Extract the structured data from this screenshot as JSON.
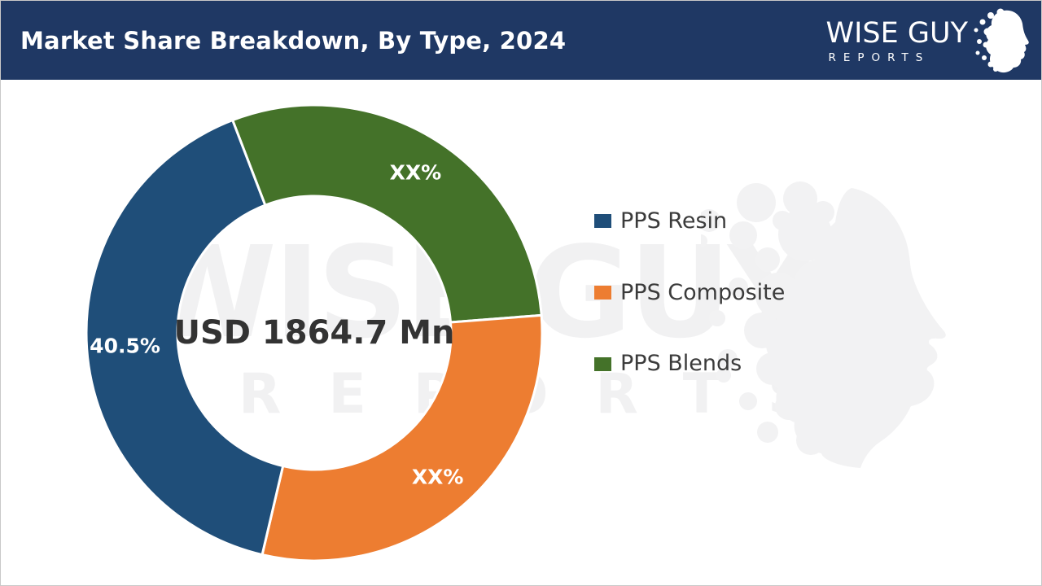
{
  "header": {
    "title": "Market Share Breakdown, By Type, 2024",
    "brand": {
      "line1": "WISE GUY",
      "line2": "REPORTS"
    }
  },
  "watermark": {
    "line1": "WISE GUY",
    "line2": "REPORTS"
  },
  "chart_data": {
    "type": "donut",
    "title": "Market Share Breakdown, By Type, 2024",
    "center_label": "USD 1864.7 Mn",
    "legend_position": "right",
    "start_angle_deg": -21,
    "clockwise_order": [
      "PPS Blends",
      "PPS Composite",
      "PPS Resin"
    ],
    "slices": [
      {
        "label": "PPS Resin",
        "value_pct": 40.5,
        "display": "40.5%",
        "color": "#1F4E79"
      },
      {
        "label": "PPS Composite",
        "value_pct": 29.9,
        "display": "XX%",
        "color": "#ED7D31"
      },
      {
        "label": "PPS Blends",
        "value_pct": 29.6,
        "display": "XX%",
        "color": "#447229"
      }
    ]
  }
}
